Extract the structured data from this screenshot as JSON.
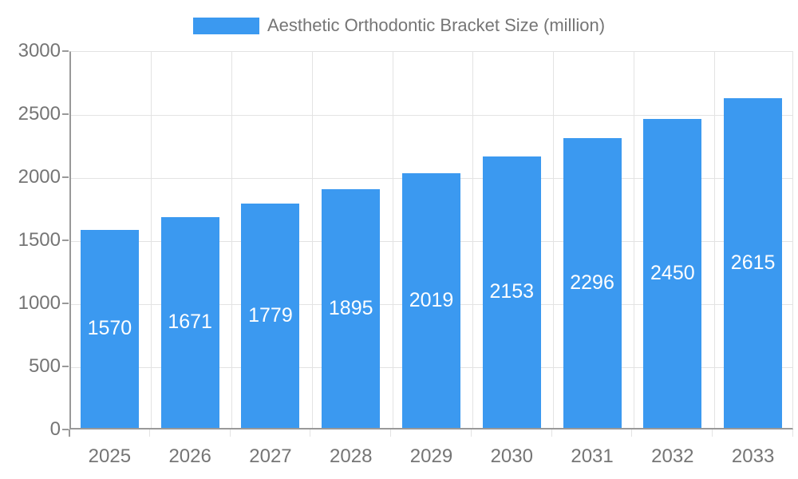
{
  "chart_data": {
    "type": "bar",
    "title": "Aesthetic Orthodontic Bracket Size (million)",
    "legend": {
      "position": "top",
      "label": "Aesthetic Orthodontic Bracket Size (million)"
    },
    "categories": [
      "2025",
      "2026",
      "2027",
      "2028",
      "2029",
      "2030",
      "2031",
      "2032",
      "2033"
    ],
    "values": [
      1570,
      1671,
      1779,
      1895,
      2019,
      2153,
      2296,
      2450,
      2615
    ],
    "bar_value_labels": [
      "1570",
      "1671",
      "1779",
      "1895",
      "2019",
      "2153",
      "2296",
      "2450",
      "2615"
    ],
    "xlabel": "",
    "ylabel": "",
    "ylim": [
      0,
      3000
    ],
    "yticks": [
      0,
      500,
      1000,
      1500,
      2000,
      2500,
      3000
    ],
    "grid": true,
    "colors": {
      "bar": "#3b99f0",
      "axis": "#999999",
      "grid": "#e3e3e3",
      "tick_label": "#757575",
      "title": "#757575",
      "bar_label": "#ffffff",
      "background": "#ffffff"
    }
  }
}
